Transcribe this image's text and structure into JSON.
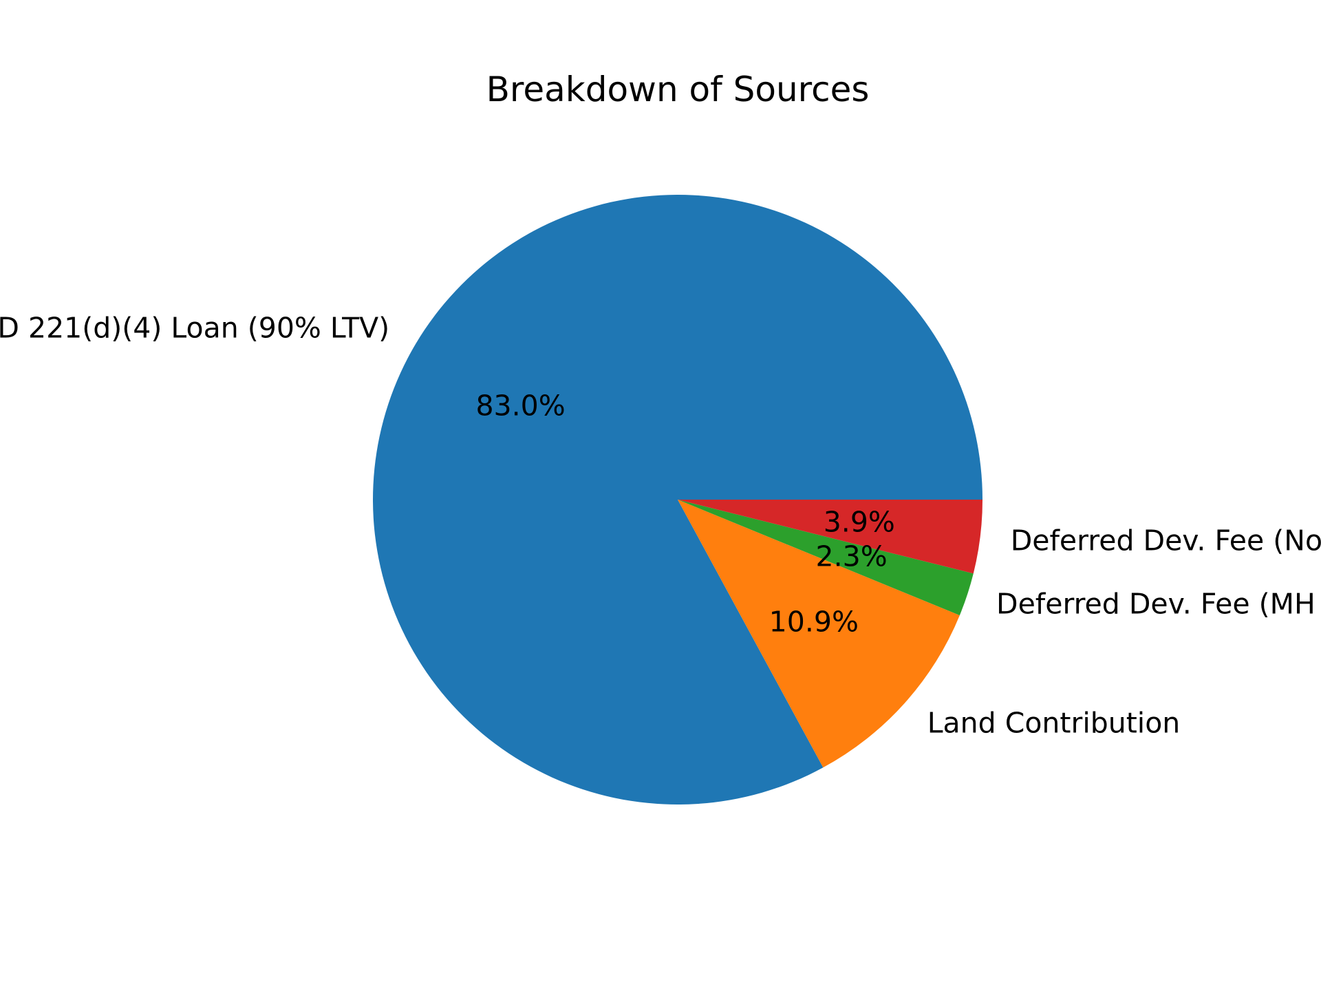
{
  "title": "Breakdown of Sources",
  "chart_data": {
    "type": "pie",
    "title": "Breakdown of Sources",
    "start_angle_deg": 0,
    "counterclockwise": true,
    "label_distance": 1.1,
    "pct_distance": 0.6,
    "labels_clipped_at_image_edges": true,
    "slices": [
      {
        "label": "D 221(d)(4) Loan (90% LTV)",
        "value": 83.0,
        "pct_label": "83.0%",
        "color": "#1f77b4"
      },
      {
        "label": "Land Contribution",
        "value": 10.9,
        "pct_label": "10.9%",
        "color": "#ff7f0e"
      },
      {
        "label": "Deferred Dev. Fee (MH",
        "value": 2.3,
        "pct_label": "2.3%",
        "color": "#2ca02c"
      },
      {
        "label": "Deferred Dev. Fee (No",
        "value": 3.9,
        "pct_label": "3.9%",
        "color": "#d62728"
      }
    ]
  }
}
